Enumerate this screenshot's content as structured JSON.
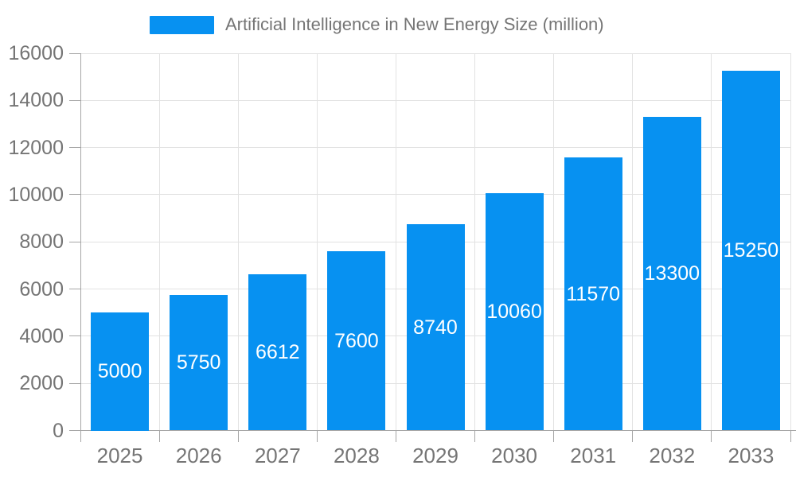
{
  "legend": {
    "items": [
      {
        "label": "Artificial Intelligence in New Energy Size (million)",
        "color": "#0791F1"
      }
    ]
  },
  "chart_data": {
    "type": "bar",
    "title": "",
    "categories": [
      "2025",
      "2026",
      "2027",
      "2028",
      "2029",
      "2030",
      "2031",
      "2032",
      "2033"
    ],
    "series": [
      {
        "name": "Artificial Intelligence in New Energy Size (million)",
        "values": [
          5000,
          5750,
          6612,
          7600,
          8740,
          10060,
          11570,
          13300,
          15250
        ]
      }
    ],
    "bar_labels": [
      "5000",
      "5750",
      "6612",
      "7600",
      "8740",
      "10060",
      "11570",
      "13300",
      "15250"
    ],
    "xlabel": "",
    "ylabel": "",
    "ylim": [
      0,
      16000
    ],
    "yticks": [
      0,
      2000,
      4000,
      6000,
      8000,
      10000,
      12000,
      14000,
      16000
    ],
    "grid": true,
    "legend_position": "top",
    "bar_label_position": "inside-center",
    "colors": {
      "bar": "#0791F1",
      "bar_label": "#FFFFFF",
      "axis_text": "#757575",
      "grid_line": "#E2E2E2",
      "axis_line": "#A6A6A6",
      "background": "#FFFFFF"
    }
  }
}
